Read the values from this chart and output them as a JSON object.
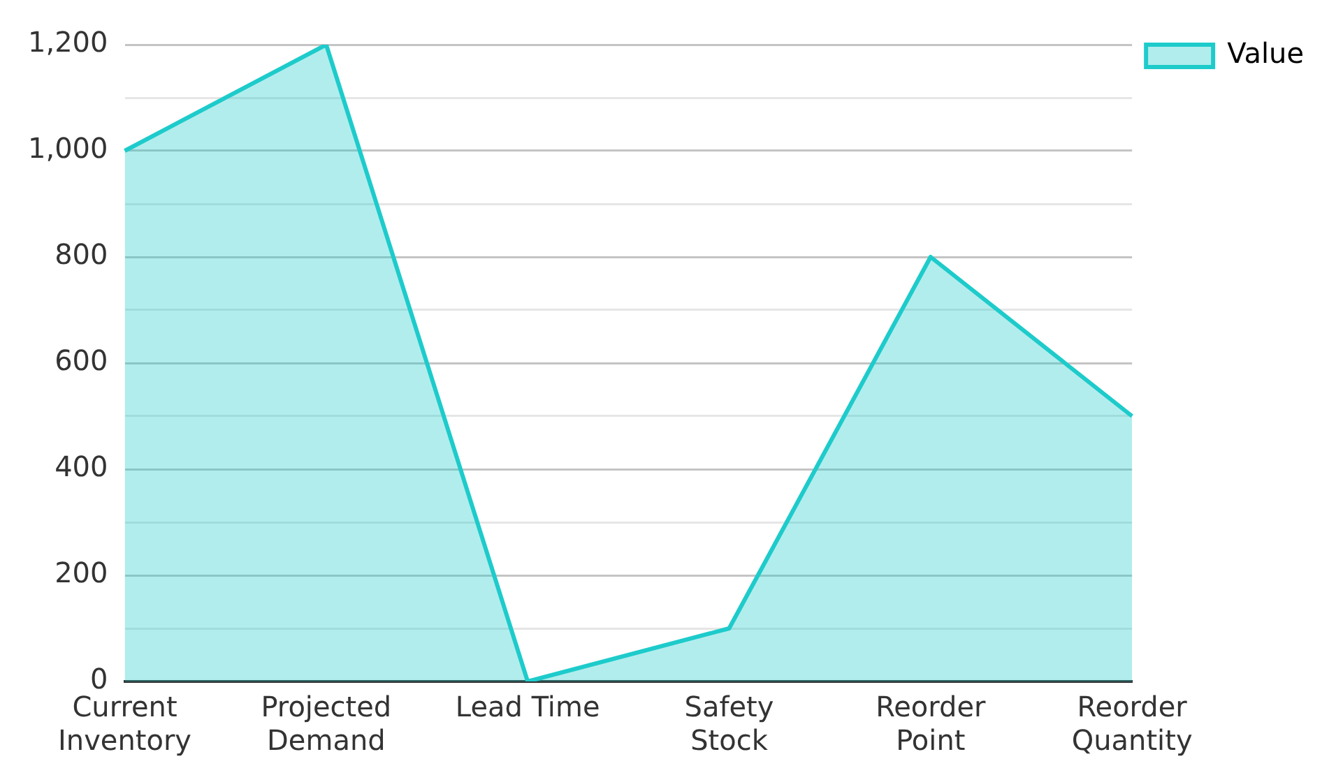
{
  "chart_data": {
    "type": "area",
    "categories": [
      "Current Inventory",
      "Projected Demand",
      "Lead Time",
      "Safety Stock",
      "Reorder Point",
      "Reorder Quantity"
    ],
    "series": [
      {
        "name": "Value",
        "color": "#1ecbcb",
        "values": [
          1000,
          1200,
          0,
          100,
          800,
          500
        ]
      }
    ],
    "ylim": [
      0,
      1200
    ],
    "yticks": [
      0,
      {
        "value": 100,
        "label": null
      },
      {
        "value": 200,
        "label": "200"
      },
      {
        "value": 300,
        "label": null
      },
      {
        "value": 400,
        "label": "400"
      },
      {
        "value": 500,
        "label": null
      },
      {
        "value": 600,
        "label": "600"
      },
      {
        "value": 700,
        "label": null
      },
      {
        "value": 800,
        "label": "800"
      },
      {
        "value": 900,
        "label": null
      },
      {
        "value": 1000,
        "label": "1,000"
      },
      {
        "value": 1100,
        "label": null
      },
      {
        "value": 1200,
        "label": "1,200"
      }
    ],
    "grid": "y",
    "legend": "top right",
    "marker": "none",
    "line_style": "solid"
  }
}
